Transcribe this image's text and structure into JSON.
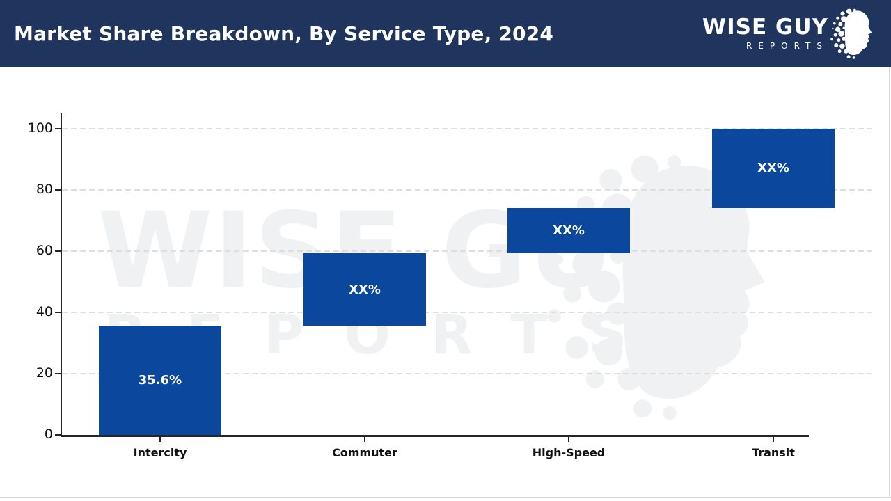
{
  "header": {
    "title": "Market Share Breakdown, By Service Type, 2024",
    "logo": {
      "line1": "WISE GUY",
      "line2": "REPORTS"
    }
  },
  "watermark": {
    "line1": "WISE GUY",
    "line2": "REPORTS"
  },
  "chart_data": {
    "type": "bar",
    "subtype": "waterfall",
    "title": "Market Share Breakdown, By Service Type, 2024",
    "categories": [
      "Intercity",
      "Commuter",
      "High-Speed",
      "Transit"
    ],
    "segments": [
      {
        "category": "Intercity",
        "start": 0,
        "end": 35.6,
        "label": "35.6%"
      },
      {
        "category": "Commuter",
        "start": 35.6,
        "end": 59.3,
        "label": "XX%"
      },
      {
        "category": "High-Speed",
        "start": 59.3,
        "end": 74.2,
        "label": "XX%"
      },
      {
        "category": "Transit",
        "start": 74.2,
        "end": 100,
        "label": "XX%"
      }
    ],
    "yticks": [
      0,
      20,
      40,
      60,
      80,
      100
    ],
    "ylim": [
      0,
      105
    ],
    "xlabel": "",
    "ylabel": "",
    "grid": "horizontal-dashed",
    "legend": "none",
    "colors": {
      "bar": "#0b479d",
      "bar_label": "#ffffff",
      "grid": "#dedede",
      "axis": "#262626",
      "header_bg": "#1f355e",
      "watermark": "#f0f1f3"
    }
  }
}
